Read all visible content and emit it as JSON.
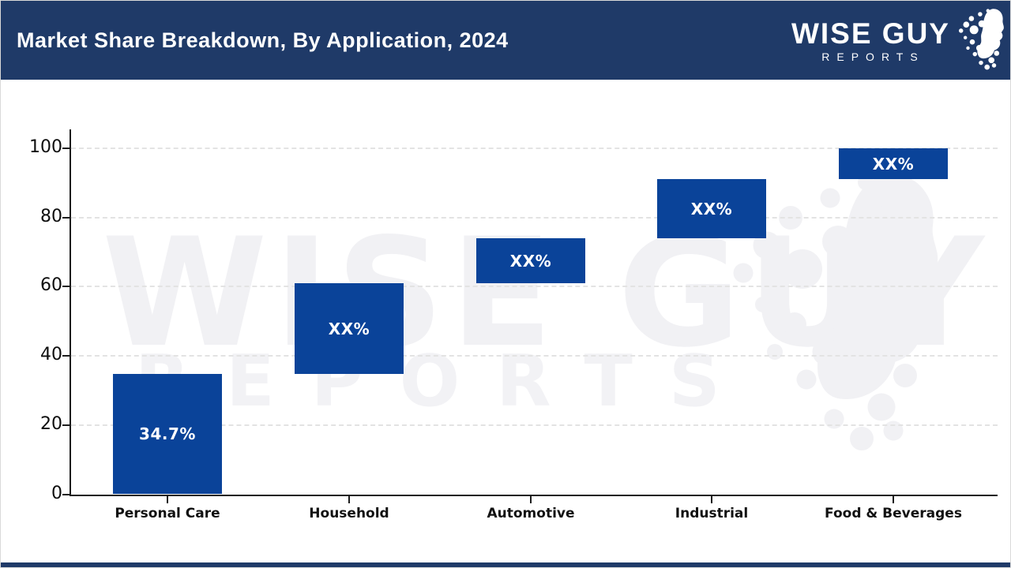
{
  "page": {
    "background": "#ffffff",
    "border_color": "#d9d9d9"
  },
  "header": {
    "title": "Market Share Breakdown, By Application, 2024",
    "background": "#1f3a68",
    "logo": {
      "primary": "WISE GUY",
      "secondary": "REPORTS"
    }
  },
  "footer": {
    "background": "#1f3a68"
  },
  "watermark": {
    "primary": "WISE GUY",
    "secondary": "REPORTS"
  },
  "colors": {
    "bar": "#0a4399",
    "bar_label": "#ffffff",
    "grid": "#e3e3e3",
    "axis": "#1c1c1c",
    "tick_label": "#0d0d0d",
    "category_label": "#111111",
    "watermark": "#f1f1f4"
  },
  "chart_data": {
    "type": "bar",
    "subtype": "waterfall-floating-bars",
    "title": "Market Share Breakdown, By Application, 2024",
    "categories": [
      "Personal Care",
      "Household",
      "Automotive",
      "Industrial",
      "Food & Beverages"
    ],
    "segments": [
      {
        "category": "Personal Care",
        "start": 0,
        "end": 34.7,
        "label": "34.7%"
      },
      {
        "category": "Household",
        "start": 34.7,
        "end": 61,
        "label": "XX%"
      },
      {
        "category": "Automotive",
        "start": 61,
        "end": 74,
        "label": "XX%"
      },
      {
        "category": "Industrial",
        "start": 74,
        "end": 91,
        "label": "XX%"
      },
      {
        "category": "Food & Beverages",
        "start": 91,
        "end": 100,
        "label": "XX%"
      }
    ],
    "yticks": [
      0,
      20,
      40,
      60,
      80,
      100
    ],
    "ylim": [
      0,
      105
    ],
    "xlabel": "",
    "ylabel": "",
    "grid": "horizontal-dashed",
    "legend": "none"
  }
}
